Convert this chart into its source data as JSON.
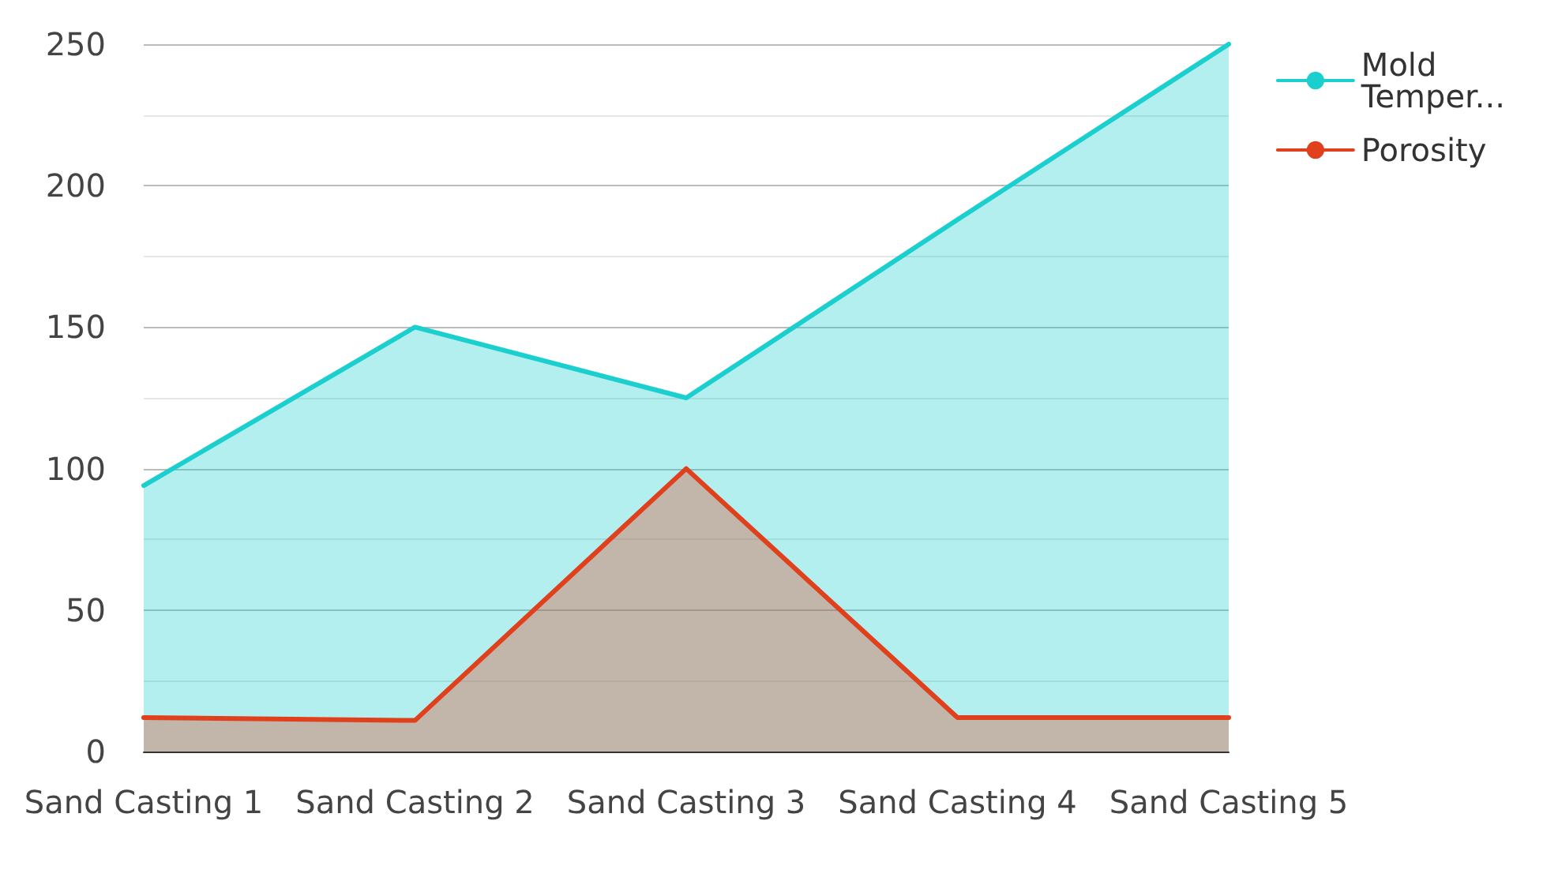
{
  "chart_data": {
    "type": "area",
    "categories": [
      "Sand Casting 1",
      "Sand Casting 2",
      "Sand Casting 3",
      "Sand Casting 4",
      "Sand Casting 5"
    ],
    "series": [
      {
        "name": "Mold Temper...",
        "color": "#1ccfcf",
        "values": [
          94,
          150,
          125,
          188,
          250
        ]
      },
      {
        "name": "Porosity",
        "color": "#e0401c",
        "values": [
          12,
          11,
          100,
          12,
          12
        ]
      }
    ],
    "ylim": [
      0,
      250
    ],
    "yticks": [
      0,
      50,
      100,
      150,
      200,
      250
    ],
    "grid": true,
    "legend": "top right",
    "marker": "none",
    "line_style": "solid"
  }
}
